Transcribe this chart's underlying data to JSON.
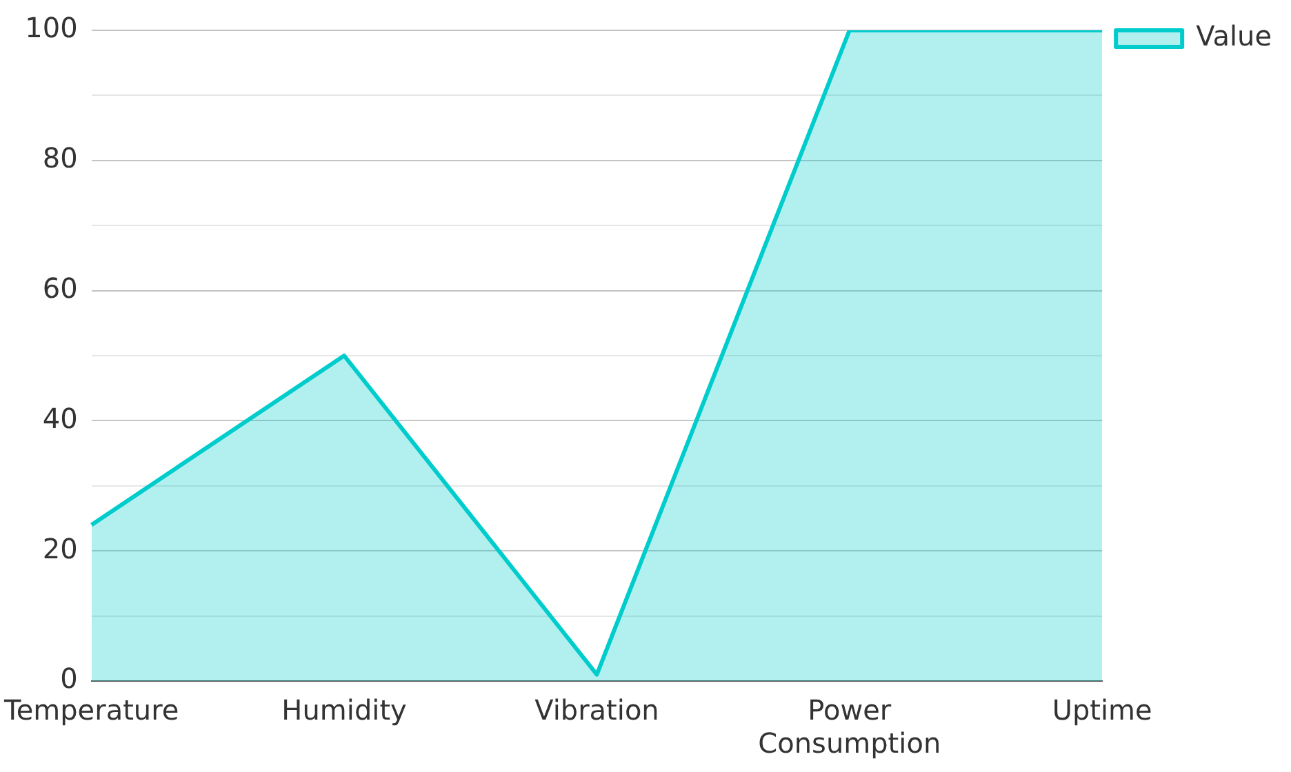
{
  "chart_data": {
    "type": "area",
    "categories": [
      "Temperature",
      "Humidity",
      "Vibration",
      "Power Consumption",
      "Uptime"
    ],
    "series": [
      {
        "name": "Value",
        "color": "#00cccc",
        "values": [
          24,
          50,
          1,
          100,
          100
        ]
      }
    ],
    "ylim": [
      0,
      100
    ],
    "yticks": [
      0,
      {
        "value": 10,
        "label": null
      },
      20,
      {
        "value": 30,
        "label": null
      },
      40,
      {
        "value": 50,
        "label": null
      },
      60,
      {
        "value": 70,
        "label": null
      },
      80,
      {
        "value": 90,
        "label": null
      },
      100
    ],
    "grid": "y",
    "legend": "top right",
    "marker": "none",
    "line_style": "solid"
  }
}
